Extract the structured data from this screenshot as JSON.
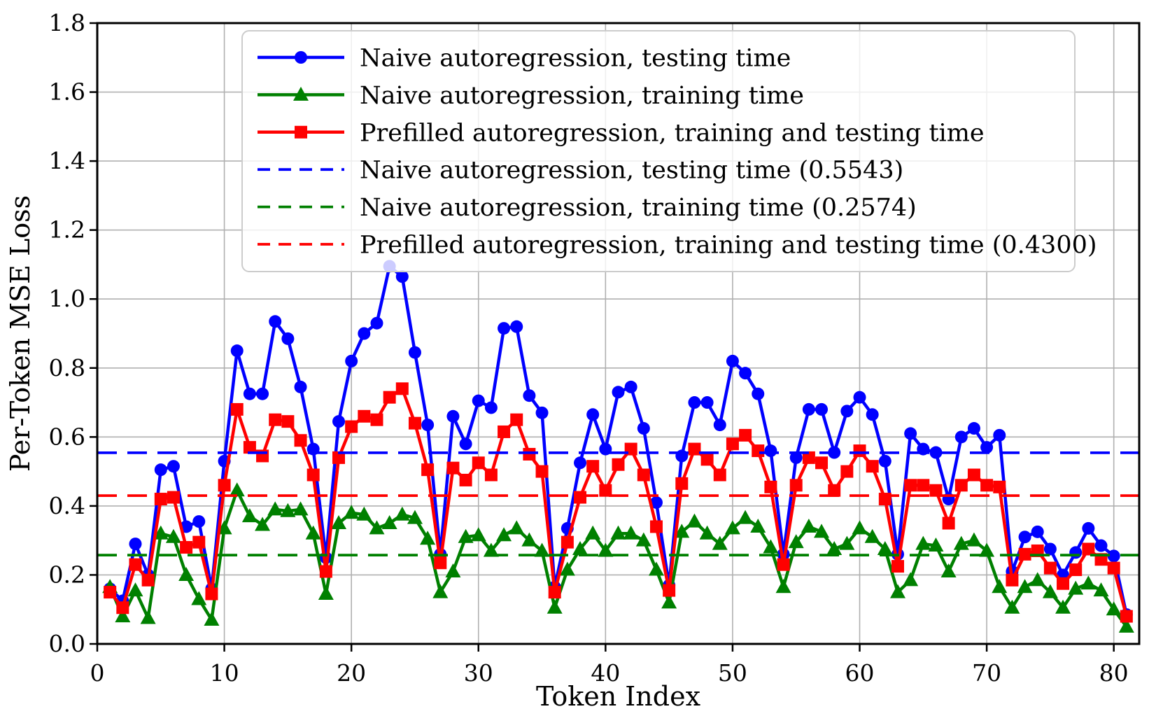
{
  "figure": {
    "background": "#ffffff",
    "grid_color": "#b0b0b0",
    "spine_color": "#000000",
    "legend_border_color": "#cccccc"
  },
  "chart_data": {
    "type": "line",
    "title": "",
    "xlabel": "Token Index",
    "ylabel": "Per-Token MSE Loss",
    "xlim": [
      0,
      82
    ],
    "ylim": [
      0,
      1.8
    ],
    "x_ticks": [
      0,
      10,
      20,
      30,
      40,
      50,
      60,
      70,
      80
    ],
    "y_ticks": [
      0.0,
      0.2,
      0.4,
      0.6,
      0.8,
      1.0,
      1.2,
      1.4,
      1.6,
      1.8
    ],
    "grid": true,
    "legend_position": "upper left inside",
    "x": [
      1,
      2,
      3,
      4,
      5,
      6,
      7,
      8,
      9,
      10,
      11,
      12,
      13,
      14,
      15,
      16,
      17,
      18,
      19,
      20,
      21,
      22,
      23,
      24,
      25,
      26,
      27,
      28,
      29,
      30,
      31,
      32,
      33,
      34,
      35,
      36,
      37,
      38,
      39,
      40,
      41,
      42,
      43,
      44,
      45,
      46,
      47,
      48,
      49,
      50,
      51,
      52,
      53,
      54,
      55,
      56,
      57,
      58,
      59,
      60,
      61,
      62,
      63,
      64,
      65,
      66,
      67,
      68,
      69,
      70,
      71,
      72,
      73,
      74,
      75,
      76,
      77,
      78,
      79,
      80,
      81
    ],
    "series": [
      {
        "name": "Naive autoregression, testing time",
        "color": "#0000ff",
        "marker": "circle",
        "linestyle": "solid",
        "values": [
          0.16,
          0.125,
          0.29,
          0.2,
          0.505,
          0.515,
          0.34,
          0.355,
          0.16,
          0.53,
          0.85,
          0.725,
          0.725,
          0.935,
          0.885,
          0.745,
          0.565,
          0.25,
          0.645,
          0.82,
          0.9,
          0.93,
          1.095,
          1.065,
          0.845,
          0.635,
          0.26,
          0.66,
          0.58,
          0.705,
          0.685,
          0.915,
          0.92,
          0.72,
          0.67,
          0.165,
          0.335,
          0.525,
          0.665,
          0.565,
          0.73,
          0.745,
          0.625,
          0.41,
          0.17,
          0.545,
          0.7,
          0.7,
          0.635,
          0.82,
          0.785,
          0.725,
          0.56,
          0.26,
          0.54,
          0.68,
          0.68,
          0.555,
          0.675,
          0.715,
          0.665,
          0.53,
          0.26,
          0.61,
          0.565,
          0.555,
          0.42,
          0.6,
          0.625,
          0.57,
          0.605,
          0.21,
          0.31,
          0.325,
          0.275,
          0.2,
          0.265,
          0.335,
          0.285,
          0.255,
          0.085
        ]
      },
      {
        "name": "Naive autoregression, training time",
        "color": "#008000",
        "marker": "triangle",
        "linestyle": "solid",
        "values": [
          0.165,
          0.08,
          0.155,
          0.075,
          0.32,
          0.31,
          0.2,
          0.13,
          0.07,
          0.335,
          0.445,
          0.37,
          0.345,
          0.39,
          0.385,
          0.39,
          0.32,
          0.145,
          0.35,
          0.38,
          0.375,
          0.335,
          0.35,
          0.375,
          0.365,
          0.305,
          0.15,
          0.21,
          0.31,
          0.315,
          0.27,
          0.315,
          0.335,
          0.3,
          0.27,
          0.105,
          0.215,
          0.275,
          0.32,
          0.27,
          0.32,
          0.32,
          0.3,
          0.215,
          0.12,
          0.325,
          0.355,
          0.32,
          0.29,
          0.335,
          0.365,
          0.34,
          0.28,
          0.165,
          0.295,
          0.34,
          0.325,
          0.275,
          0.29,
          0.335,
          0.31,
          0.275,
          0.15,
          0.185,
          0.29,
          0.285,
          0.21,
          0.29,
          0.3,
          0.27,
          0.165,
          0.105,
          0.165,
          0.185,
          0.15,
          0.105,
          0.16,
          0.175,
          0.155,
          0.1,
          0.05
        ]
      },
      {
        "name": "Prefilled autoregression, training and testing time",
        "color": "#ff0000",
        "marker": "square",
        "linestyle": "solid",
        "values": [
          0.15,
          0.105,
          0.23,
          0.185,
          0.42,
          0.425,
          0.28,
          0.295,
          0.145,
          0.46,
          0.68,
          0.57,
          0.545,
          0.65,
          0.645,
          0.59,
          0.49,
          0.21,
          0.54,
          0.63,
          0.66,
          0.65,
          0.715,
          0.74,
          0.64,
          0.505,
          0.235,
          0.51,
          0.475,
          0.525,
          0.49,
          0.615,
          0.65,
          0.55,
          0.5,
          0.15,
          0.295,
          0.425,
          0.515,
          0.445,
          0.52,
          0.565,
          0.49,
          0.34,
          0.155,
          0.465,
          0.565,
          0.535,
          0.49,
          0.58,
          0.605,
          0.56,
          0.455,
          0.23,
          0.46,
          0.54,
          0.525,
          0.445,
          0.5,
          0.56,
          0.515,
          0.42,
          0.225,
          0.46,
          0.46,
          0.445,
          0.35,
          0.46,
          0.49,
          0.46,
          0.455,
          0.185,
          0.26,
          0.27,
          0.22,
          0.175,
          0.215,
          0.275,
          0.245,
          0.22,
          0.08
        ]
      }
    ],
    "mean_lines": [
      {
        "name": "Naive autoregression, testing time (0.5543)",
        "color": "#0000ff",
        "linestyle": "dashed",
        "value": 0.5543
      },
      {
        "name": "Naive autoregression, training time (0.2574)",
        "color": "#008000",
        "linestyle": "dashed",
        "value": 0.2574
      },
      {
        "name": "Prefilled autoregression, training and testing time (0.4300)",
        "color": "#ff0000",
        "linestyle": "dashed",
        "value": 0.43
      }
    ]
  }
}
